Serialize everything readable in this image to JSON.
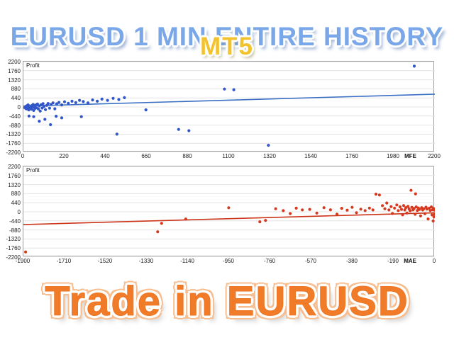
{
  "header": {
    "title": "EURUSD 1 MIN ENTIRE HISTORY",
    "subtitle": "MT5"
  },
  "footer": {
    "text": "Trade in EURUSD"
  },
  "colors": {
    "title_blue": "#79a7e8",
    "mt5_gold": "#f3c32f",
    "footer_orange": "#f07b28",
    "scatter_blue": "#3056c8",
    "scatter_red": "#d6391d",
    "grid": "#e4e4e4",
    "plot_border": "#9e9e9e",
    "axis_text": "#222222"
  },
  "chart_data": [
    {
      "type": "scatter",
      "name": "profit-vs-mfe",
      "ylabel": "Profit",
      "xlabel": "MFE",
      "xlim": [
        0,
        2200
      ],
      "ylim": [
        -2200,
        2200
      ],
      "xticks": [
        0,
        220,
        440,
        660,
        880,
        1100,
        1320,
        1540,
        1760,
        1980,
        2200
      ],
      "yticks": [
        2200,
        1760,
        1320,
        880,
        440,
        0,
        -440,
        -880,
        -1320,
        -1760,
        -2200
      ],
      "grid": true,
      "point_color": "#3056c8",
      "trend_color": "#3b6fc4",
      "trend": {
        "x1": 0,
        "y1": 40,
        "x2": 2200,
        "y2": 620
      },
      "points": [
        [
          8,
          -40
        ],
        [
          12,
          25
        ],
        [
          15,
          -90
        ],
        [
          18,
          60
        ],
        [
          22,
          -30
        ],
        [
          25,
          100
        ],
        [
          28,
          -140
        ],
        [
          32,
          40
        ],
        [
          35,
          -60
        ],
        [
          38,
          15
        ],
        [
          42,
          -110
        ],
        [
          45,
          70
        ],
        [
          48,
          -20
        ],
        [
          52,
          120
        ],
        [
          55,
          -170
        ],
        [
          58,
          35
        ],
        [
          62,
          -70
        ],
        [
          65,
          90
        ],
        [
          70,
          -40
        ],
        [
          75,
          140
        ],
        [
          80,
          -100
        ],
        [
          85,
          50
        ],
        [
          90,
          -200
        ],
        [
          95,
          110
        ],
        [
          100,
          -50
        ],
        [
          105,
          160
        ],
        [
          110,
          20
        ],
        [
          118,
          -130
        ],
        [
          125,
          80
        ],
        [
          132,
          170
        ],
        [
          140,
          -60
        ],
        [
          148,
          120
        ],
        [
          158,
          200
        ],
        [
          168,
          -90
        ],
        [
          178,
          150
        ],
        [
          190,
          220
        ],
        [
          205,
          100
        ],
        [
          220,
          250
        ],
        [
          240,
          180
        ],
        [
          260,
          280
        ],
        [
          280,
          210
        ],
        [
          300,
          320
        ],
        [
          320,
          260
        ],
        [
          345,
          200
        ],
        [
          370,
          340
        ],
        [
          395,
          280
        ],
        [
          420,
          380
        ],
        [
          450,
          320
        ],
        [
          480,
          420
        ],
        [
          510,
          360
        ],
        [
          540,
          450
        ],
        [
          30,
          -440
        ],
        [
          55,
          -470
        ],
        [
          85,
          -690
        ],
        [
          115,
          -600
        ],
        [
          145,
          -860
        ],
        [
          175,
          -450
        ],
        [
          205,
          -530
        ],
        [
          310,
          -470
        ],
        [
          500,
          -1320
        ],
        [
          655,
          -140
        ],
        [
          830,
          -1090
        ],
        [
          885,
          -1150
        ],
        [
          1075,
          870
        ],
        [
          1125,
          840
        ],
        [
          1310,
          -1860
        ],
        [
          2090,
          1980
        ]
      ]
    },
    {
      "type": "scatter",
      "name": "profit-vs-mae",
      "ylabel": "Profit",
      "xlabel": "MAE",
      "xlim": [
        -1900,
        0
      ],
      "ylim": [
        -2200,
        2200
      ],
      "xticks": [
        -1900,
        -1710,
        -1520,
        -1330,
        -1140,
        -950,
        -760,
        -570,
        -380,
        -190,
        0
      ],
      "yticks": [
        2200,
        1760,
        1320,
        880,
        440,
        0,
        -440,
        -880,
        -1320,
        -1760,
        -2200
      ],
      "grid": true,
      "point_color": "#d6391d",
      "trend_color": "#cc3318",
      "trend": {
        "x1": -1900,
        "y1": -620,
        "x2": 0,
        "y2": -50
      },
      "points": [
        [
          -1890,
          -1950
        ],
        [
          -1280,
          -970
        ],
        [
          -1262,
          -560
        ],
        [
          -1150,
          -350
        ],
        [
          -952,
          195
        ],
        [
          -808,
          -485
        ],
        [
          -782,
          -420
        ],
        [
          -735,
          148
        ],
        [
          -700,
          55
        ],
        [
          -668,
          -85
        ],
        [
          -640,
          175
        ],
        [
          -612,
          92
        ],
        [
          -578,
          118
        ],
        [
          -545,
          -62
        ],
        [
          -512,
          198
        ],
        [
          -482,
          96
        ],
        [
          -452,
          -118
        ],
        [
          -430,
          168
        ],
        [
          -405,
          78
        ],
        [
          -382,
          215
        ],
        [
          -362,
          -45
        ],
        [
          -342,
          128
        ],
        [
          -322,
          58
        ],
        [
          -302,
          178
        ],
        [
          -286,
          88
        ],
        [
          -272,
          855
        ],
        [
          -256,
          815
        ],
        [
          -242,
          298
        ],
        [
          -231,
          148
        ],
        [
          -222,
          425
        ],
        [
          -212,
          88
        ],
        [
          -202,
          252
        ],
        [
          -196,
          -82
        ],
        [
          -186,
          178
        ],
        [
          -176,
          332
        ],
        [
          -169,
          58
        ],
        [
          -161,
          242
        ],
        [
          -154,
          118
        ],
        [
          -149,
          -148
        ],
        [
          -144,
          302
        ],
        [
          -139,
          88
        ],
        [
          -134,
          198
        ],
        [
          -129,
          -62
        ],
        [
          -124,
          262
        ],
        [
          -119,
          142
        ],
        [
          -114,
          48
        ],
        [
          -110,
          1040
        ],
        [
          -106,
          218
        ],
        [
          -101,
          92
        ],
        [
          -96,
          158
        ],
        [
          -91,
          -122
        ],
        [
          -89,
          872
        ],
        [
          -86,
          238
        ],
        [
          -81,
          62
        ],
        [
          -76,
          182
        ],
        [
          -71,
          118
        ],
        [
          -66,
          -198
        ],
        [
          -61,
          198
        ],
        [
          -56,
          88
        ],
        [
          -51,
          148
        ],
        [
          -46,
          -92
        ],
        [
          -41,
          222
        ],
        [
          -36,
          132
        ],
        [
          -31,
          -348
        ],
        [
          -26,
          178
        ],
        [
          -21,
          62
        ],
        [
          -16,
          238
        ],
        [
          -13,
          -152
        ],
        [
          -10,
          98
        ],
        [
          -8,
          -448
        ],
        [
          -6,
          158
        ],
        [
          -4,
          -252
        ],
        [
          -2,
          78
        ],
        [
          -1,
          -120
        ]
      ]
    }
  ]
}
